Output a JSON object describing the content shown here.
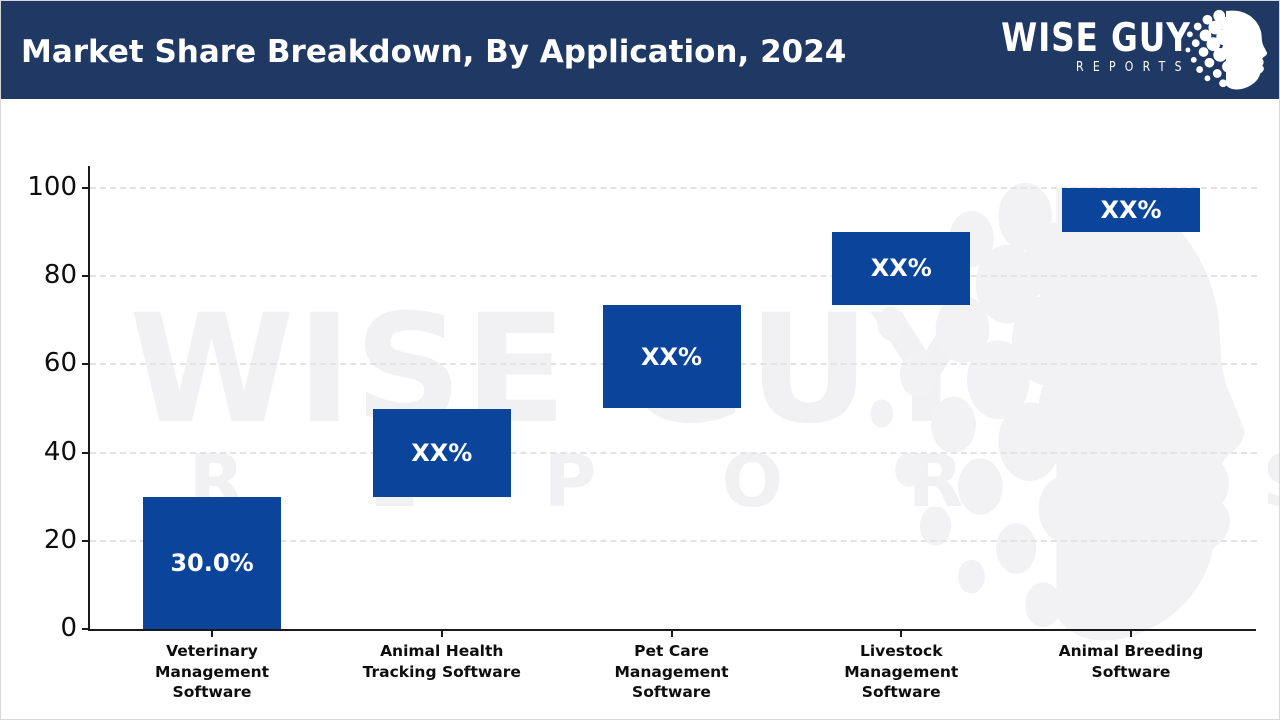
{
  "header": {
    "title": "Market Share Breakdown, By Application, 2024",
    "logo": {
      "line1": "WISE GUY",
      "line2": "REPORTS"
    }
  },
  "watermark": {
    "line1": "WISE GUY",
    "line2": "R E P O R T S"
  },
  "colors": {
    "header_bg": "#1f3864",
    "bar": "#0a449b",
    "grid": "#e3e3e5",
    "axis": "#1a1a1a",
    "bar_label_text": "#ffffff",
    "watermark": "#f1f1f3"
  },
  "chart_data": {
    "type": "bar",
    "subtype": "waterfall",
    "title": "Market Share Breakdown, By Application, 2024",
    "xlabel": "",
    "ylabel": "",
    "ylim": [
      0,
      105
    ],
    "yticks": [
      0,
      20,
      40,
      60,
      80,
      100
    ],
    "grid": "horizontal-dashed",
    "legend": "none",
    "categories": [
      "Veterinary Management Software",
      "Animal Health Tracking Software",
      "Pet Care Management Software",
      "Livestock Management Software",
      "Animal Breeding Software"
    ],
    "category_lines": [
      [
        "Veterinary",
        "Management",
        "Software"
      ],
      [
        "Animal Health",
        "Tracking Software"
      ],
      [
        "Pet Care",
        "Management",
        "Software"
      ],
      [
        "Livestock",
        "Management",
        "Software"
      ],
      [
        "Animal Breeding",
        "Software"
      ]
    ],
    "segments": [
      {
        "start": 0,
        "end": 30,
        "value": 30,
        "label": "30.0%"
      },
      {
        "start": 30,
        "end": 50,
        "value": 20,
        "label": "XX%"
      },
      {
        "start": 50,
        "end": 73.5,
        "value": 23.5,
        "label": "XX%"
      },
      {
        "start": 73.5,
        "end": 90,
        "value": 16.5,
        "label": "XX%"
      },
      {
        "start": 90,
        "end": 100,
        "value": 10,
        "label": "XX%"
      }
    ]
  }
}
